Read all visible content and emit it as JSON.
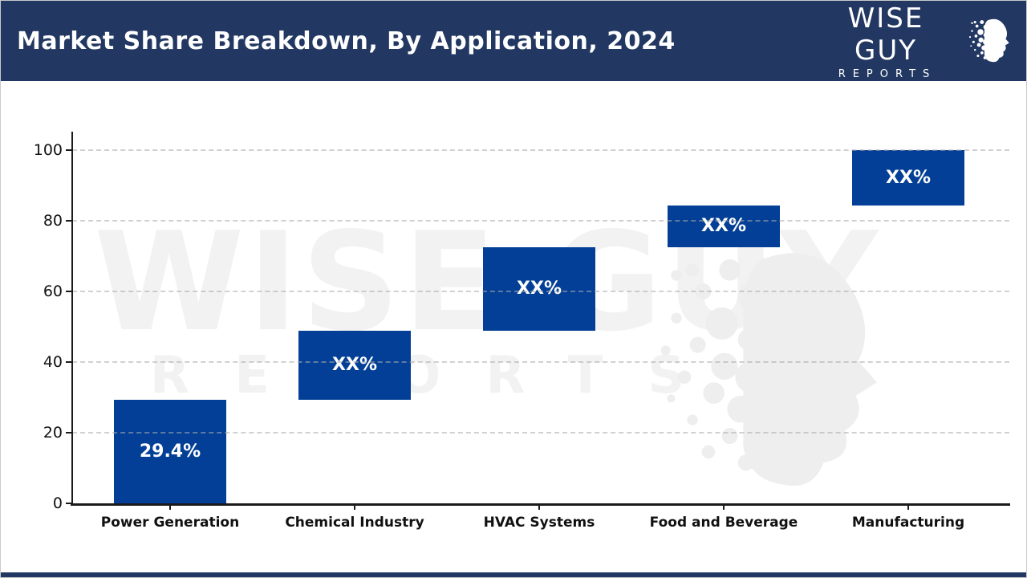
{
  "header": {
    "title": "Market Share Breakdown, By Application, 2024",
    "logo_line1": "WISE GUY",
    "logo_line2": "REPORTS"
  },
  "watermark": {
    "line1": "WISE GUY",
    "line2": "REPORTS"
  },
  "colors": {
    "header_bg": "#223862",
    "bar_blue": "#033f96",
    "bar_label_text": "#ffffff",
    "axis_text": "#111111",
    "gridline_gray": "#acacac",
    "watermark_gray": "#f2f2f2",
    "footer_bg": "#223862"
  },
  "chart_data": {
    "type": "bar",
    "subtype": "waterfall",
    "title": "Market Share Breakdown, By Application, 2024",
    "categories": [
      "Power Generation",
      "Chemical Industry",
      "HVAC Systems",
      "Food and Beverage",
      "Manufacturing"
    ],
    "segment_heights": [
      29.4,
      19.4,
      23.8,
      11.8,
      15.6
    ],
    "cumulative_start": [
      0,
      29.4,
      48.8,
      72.6,
      84.4
    ],
    "cumulative_end": [
      29.4,
      48.8,
      72.6,
      84.4,
      100
    ],
    "bar_labels": [
      "29.4%",
      "XX%",
      "XX%",
      "XX%",
      "XX%"
    ],
    "yticks": [
      0,
      20,
      40,
      60,
      80,
      100
    ],
    "ylim": [
      0,
      105
    ],
    "xlabel": "",
    "ylabel": "",
    "grid": "horizontal-dashed",
    "legend": "none",
    "bar_color": "#033f96",
    "units": "%"
  }
}
